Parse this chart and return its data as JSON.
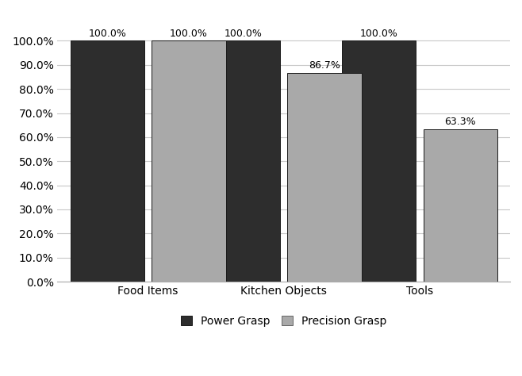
{
  "categories": [
    "Food Items",
    "Kitchen Objects",
    "Tools"
  ],
  "series": {
    "Power Grasp": [
      1.0,
      1.0,
      1.0
    ],
    "Precision Grasp": [
      1.0,
      0.867,
      0.633
    ]
  },
  "bar_colors": {
    "Power Grasp": "#2d2d2d",
    "Precision Grasp": "#a9a9a9"
  },
  "bar_labels": {
    "Power Grasp": [
      "100.0%",
      "100.0%",
      "100.0%"
    ],
    "Precision Grasp": [
      "100.0%",
      "86.7%",
      "63.3%"
    ]
  },
  "ylim": [
    0.0,
    1.12
  ],
  "yticks": [
    0.0,
    0.1,
    0.2,
    0.3,
    0.4,
    0.5,
    0.6,
    0.7,
    0.8,
    0.9,
    1.0
  ],
  "ytick_labels": [
    "0.0%",
    "10.0%",
    "20.0%",
    "30.0%",
    "40.0%",
    "50.0%",
    "60.0%",
    "70.0%",
    "80.0%",
    "90.0%",
    "100.0%"
  ],
  "legend_labels": [
    "Power Grasp",
    "Precision Grasp"
  ],
  "bar_width": 0.18,
  "group_positions": [
    0.22,
    0.55,
    0.88
  ],
  "label_fontsize": 9,
  "tick_fontsize": 10,
  "legend_fontsize": 10,
  "background_color": "#ffffff",
  "grid_color": "#c8c8c8",
  "edge_color": "#1a1a1a"
}
